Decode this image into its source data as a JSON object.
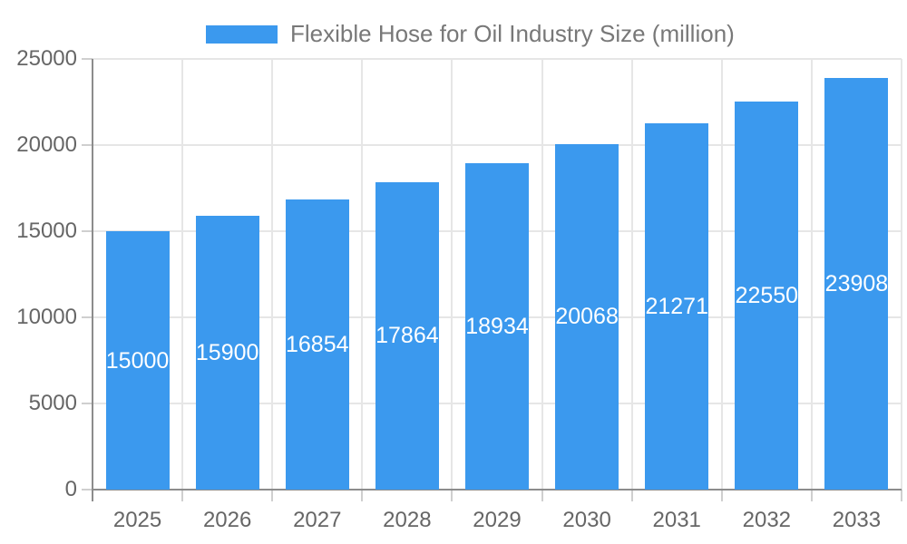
{
  "chart_data": {
    "type": "bar",
    "title": "",
    "legend_label": "Flexible Hose for Oil Industry Size (million)",
    "legend_position": "top",
    "categories": [
      "2025",
      "2026",
      "2027",
      "2028",
      "2029",
      "2030",
      "2031",
      "2032",
      "2033"
    ],
    "values": [
      15000,
      15900,
      16854,
      17864,
      18934,
      20068,
      21271,
      22550,
      23908
    ],
    "xlabel": "",
    "ylabel": "",
    "ylim": [
      0,
      25000
    ],
    "yticks": [
      0,
      5000,
      10000,
      15000,
      20000,
      25000
    ],
    "grid": true,
    "bar_color": "#3B99EE",
    "value_label_color": "#FFFFFF",
    "axis_label_color": "#666666",
    "legend_text_color": "#787878",
    "gridline_color": "#E6E6E6",
    "axis_line_color": "#8C8C8C",
    "tick_color": "#CFCFCF",
    "background_color": "#FFFFFF"
  }
}
